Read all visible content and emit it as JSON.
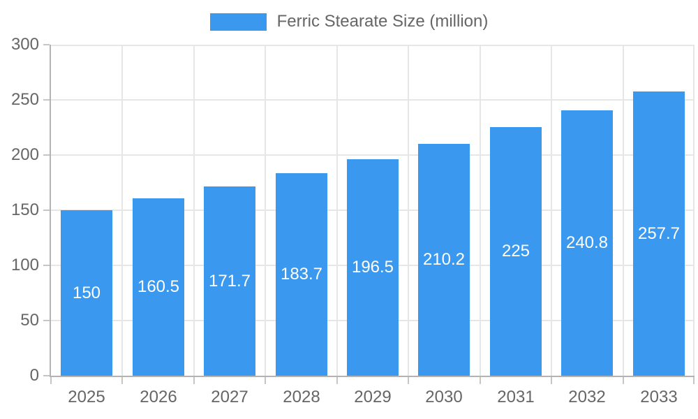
{
  "chart_data": {
    "type": "bar",
    "title": "Ferric Stearate Size (million)",
    "categories": [
      "2025",
      "2026",
      "2027",
      "2028",
      "2029",
      "2030",
      "2031",
      "2032",
      "2033"
    ],
    "series": [
      {
        "name": "Ferric Stearate Size (million)",
        "values": [
          150,
          160.5,
          171.7,
          183.7,
          196.5,
          210.2,
          225,
          240.8,
          257.7
        ]
      }
    ],
    "bar_value_labels": [
      "150",
      "160.5",
      "171.7",
      "183.7",
      "196.5",
      "210.2",
      "225",
      "240.8",
      "257.7"
    ],
    "y_ticks": [
      0,
      50,
      100,
      150,
      200,
      250,
      300
    ],
    "ylim": [
      0,
      300
    ],
    "xlabel": "",
    "ylabel": "",
    "grid": true,
    "legend_position": "top"
  },
  "colors": {
    "bar": "#3a99ee",
    "axis_text": "#666666",
    "bar_label_text": "#ffffff",
    "axis_line": "#b3b3b3",
    "tick_line": "#c6c6c6",
    "gridline": "#e6e6e6",
    "background": "#ffffff"
  }
}
